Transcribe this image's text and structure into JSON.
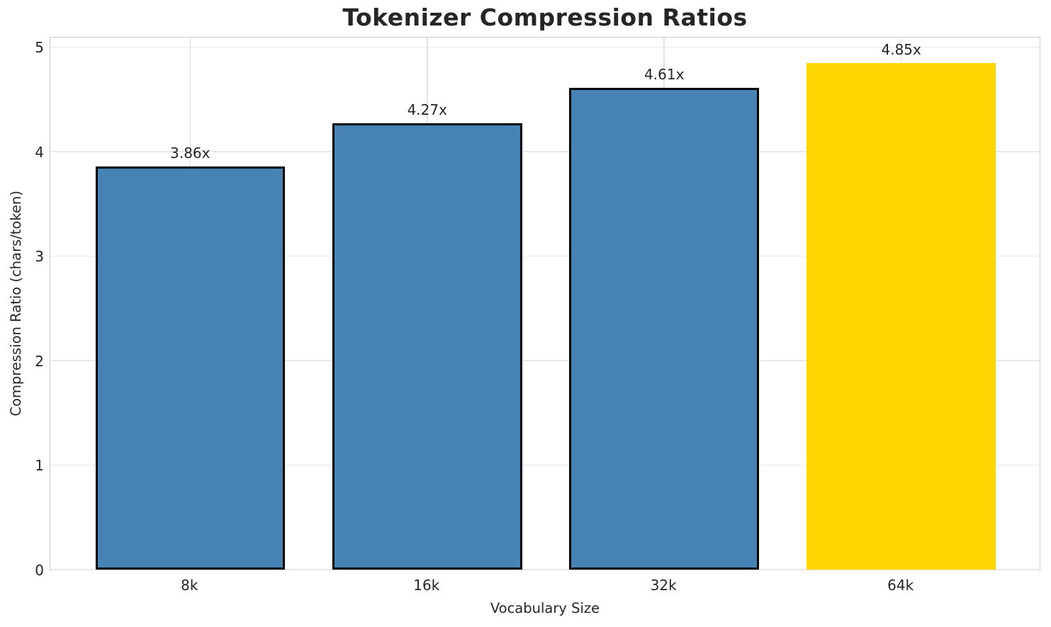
{
  "chart_data": {
    "type": "bar",
    "title": "Tokenizer Compression Ratios",
    "xlabel": "Vocabulary Size",
    "ylabel": "Compression Ratio (chars/token)",
    "categories": [
      "8k",
      "16k",
      "32k",
      "64k"
    ],
    "values": [
      3.86,
      4.27,
      4.61,
      4.85
    ],
    "value_labels": [
      "3.86x",
      "4.27x",
      "4.61x",
      "4.85x"
    ],
    "yticks": [
      0,
      1,
      2,
      3,
      4,
      5
    ],
    "ylim": [
      0,
      5.105
    ],
    "grid": true,
    "legend": "none",
    "bar_colors": [
      "#4682B4",
      "#4682B4",
      "#4682B4",
      "#FFD700"
    ],
    "bar_edge_colors": [
      "#000000",
      "#000000",
      "#000000",
      "none"
    ]
  },
  "colors": {
    "background": "#ffffff",
    "text": "#262626",
    "spine": "#cccccc",
    "grid_h": "#e9e9e9",
    "grid_v": "#e2e2e2"
  }
}
